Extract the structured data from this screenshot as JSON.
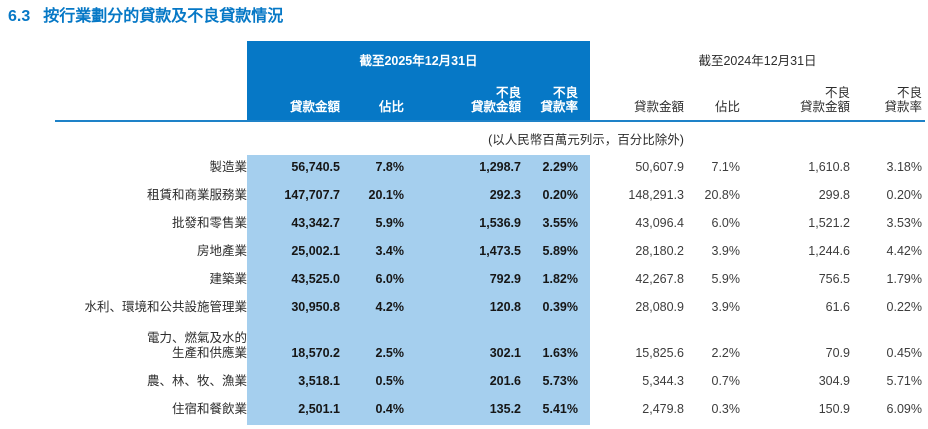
{
  "title": {
    "section_number": "6.3",
    "text": "按行業劃分的貸款及不良貸款情況"
  },
  "colors": {
    "accent_blue": "#0678c6",
    "light_blue": "#a5cfee",
    "rule_blue": "#1e82c8"
  },
  "table": {
    "period_headers": {
      "current": "截至2025年12月31日",
      "prior": "截至2024年12月31日"
    },
    "column_headers": {
      "loan_amount": "貸款金額",
      "share": "佔比",
      "npl_amount_l1": "不良",
      "npl_amount_l2": "貸款金額",
      "npl_ratio_l1": "不良",
      "npl_ratio_l2": "貸款率"
    },
    "unit_note": "(以人民幣百萬元列示，百分比除外)",
    "rows": [
      {
        "industry": "製造業",
        "y2025": {
          "loan": "56,740.5",
          "share": "7.8%",
          "npl": "1,298.7",
          "ratio": "2.29%"
        },
        "y2024": {
          "loan": "50,607.9",
          "share": "7.1%",
          "npl": "1,610.8",
          "ratio": "3.18%"
        }
      },
      {
        "industry": "租賃和商業服務業",
        "y2025": {
          "loan": "147,707.7",
          "share": "20.1%",
          "npl": "292.3",
          "ratio": "0.20%"
        },
        "y2024": {
          "loan": "148,291.3",
          "share": "20.8%",
          "npl": "299.8",
          "ratio": "0.20%"
        }
      },
      {
        "industry": "批發和零售業",
        "y2025": {
          "loan": "43,342.7",
          "share": "5.9%",
          "npl": "1,536.9",
          "ratio": "3.55%"
        },
        "y2024": {
          "loan": "43,096.4",
          "share": "6.0%",
          "npl": "1,521.2",
          "ratio": "3.53%"
        }
      },
      {
        "industry": "房地產業",
        "y2025": {
          "loan": "25,002.1",
          "share": "3.4%",
          "npl": "1,473.5",
          "ratio": "5.89%"
        },
        "y2024": {
          "loan": "28,180.2",
          "share": "3.9%",
          "npl": "1,244.6",
          "ratio": "4.42%"
        }
      },
      {
        "industry": "建築業",
        "y2025": {
          "loan": "43,525.0",
          "share": "6.0%",
          "npl": "792.9",
          "ratio": "1.82%"
        },
        "y2024": {
          "loan": "42,267.8",
          "share": "5.9%",
          "npl": "756.5",
          "ratio": "1.79%"
        }
      },
      {
        "industry": "水利、環境和公共設施管理業",
        "y2025": {
          "loan": "30,950.8",
          "share": "4.2%",
          "npl": "120.8",
          "ratio": "0.39%"
        },
        "y2024": {
          "loan": "28,080.9",
          "share": "3.9%",
          "npl": "61.6",
          "ratio": "0.22%"
        }
      },
      {
        "industry": [
          "電力、燃氣及水的",
          "生產和供應業"
        ],
        "y2025": {
          "loan": "18,570.2",
          "share": "2.5%",
          "npl": "302.1",
          "ratio": "1.63%"
        },
        "y2024": {
          "loan": "15,825.6",
          "share": "2.2%",
          "npl": "70.9",
          "ratio": "0.45%"
        }
      },
      {
        "industry": "農、林、牧、漁業",
        "y2025": {
          "loan": "3,518.1",
          "share": "0.5%",
          "npl": "201.6",
          "ratio": "5.73%"
        },
        "y2024": {
          "loan": "5,344.3",
          "share": "0.7%",
          "npl": "304.9",
          "ratio": "5.71%"
        }
      },
      {
        "industry": "住宿和餐飲業",
        "y2025": {
          "loan": "2,501.1",
          "share": "0.4%",
          "npl": "135.2",
          "ratio": "5.41%"
        },
        "y2024": {
          "loan": "2,479.8",
          "share": "0.3%",
          "npl": "150.9",
          "ratio": "6.09%"
        }
      }
    ]
  }
}
